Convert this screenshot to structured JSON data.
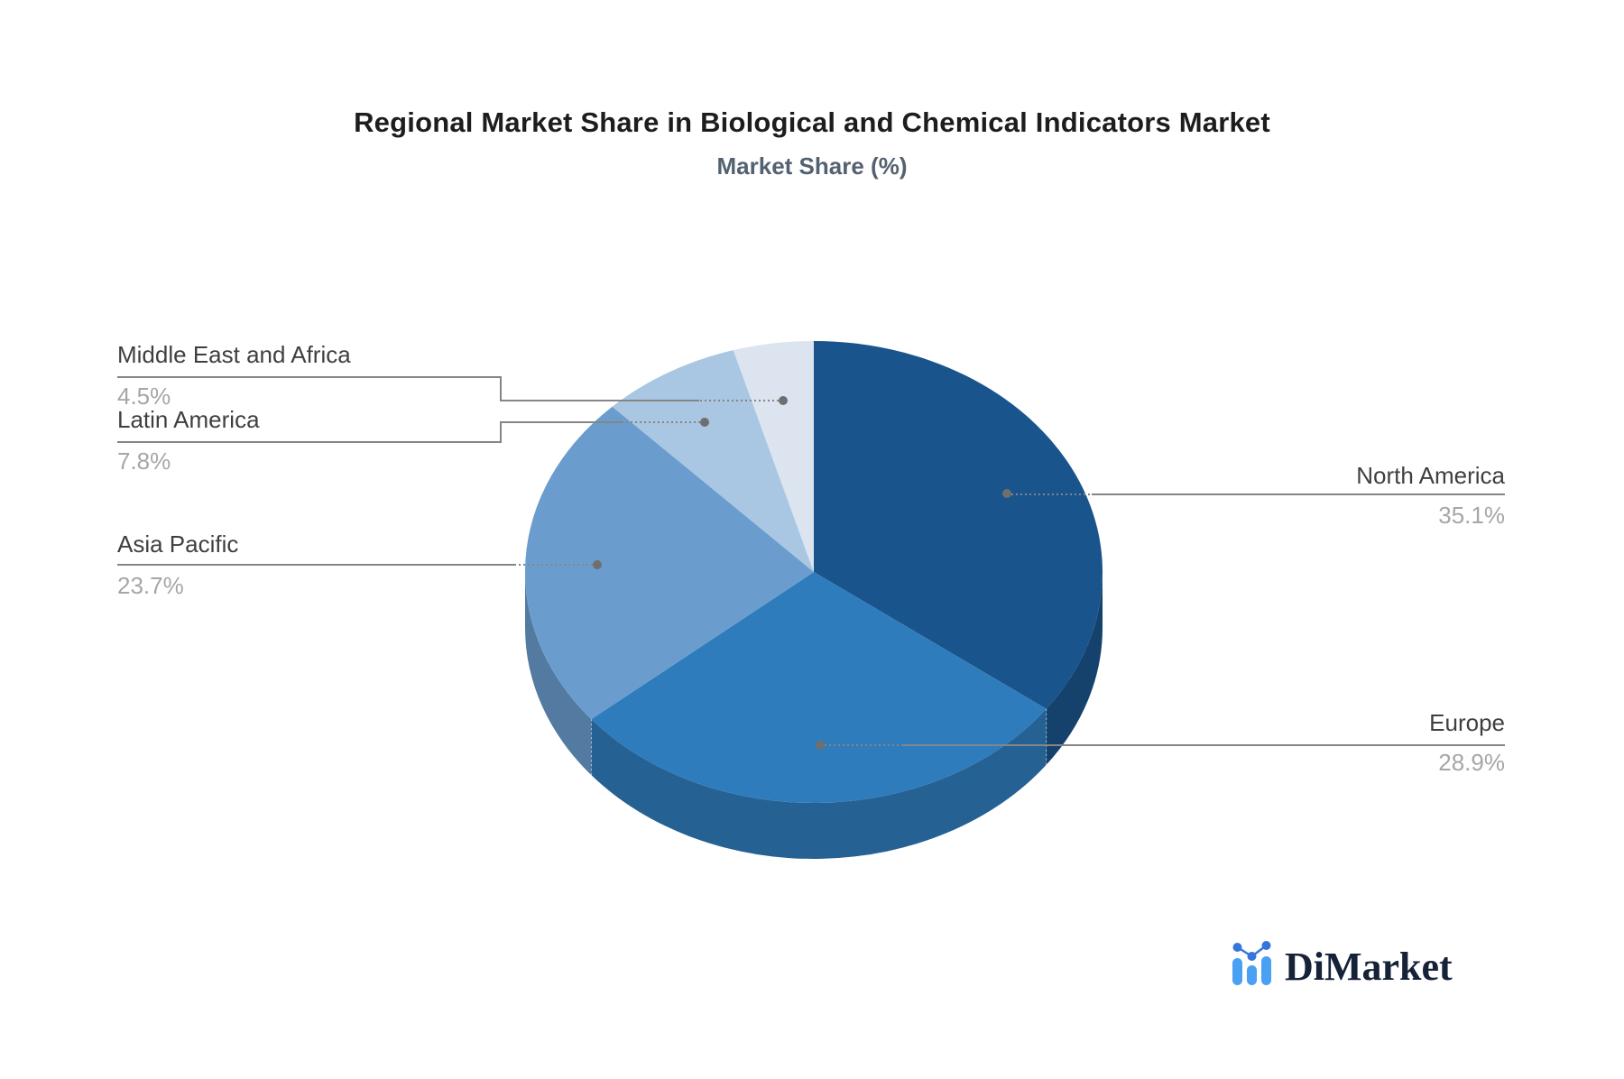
{
  "title": "Regional Market Share in Biological and Chemical Indicators Market",
  "subtitle": "Market Share (%)",
  "logo": {
    "text": "DiMarket"
  },
  "chart_data": {
    "type": "pie",
    "title": "Regional Market Share in Biological and Chemical Indicators Market",
    "subtitle": "Market Share (%)",
    "unit": "%",
    "style": "3d",
    "direction": "clockwise",
    "start_angle_deg": 0,
    "legend_position": "callout-labels",
    "segments": [
      {
        "label": "North America",
        "value": 35.1,
        "display": "35.1%",
        "color": "#1A548C"
      },
      {
        "label": "Europe",
        "value": 28.9,
        "display": "28.9%",
        "color": "#2F7CBD"
      },
      {
        "label": "Asia Pacific",
        "value": 23.7,
        "display": "23.7%",
        "color": "#6A9DCE"
      },
      {
        "label": "Latin America",
        "value": 7.8,
        "display": "7.8%",
        "color": "#A9C6E2"
      },
      {
        "label": "Middle East and Africa",
        "value": 4.5,
        "display": "4.5%",
        "color": "#DCE4EF"
      }
    ]
  }
}
